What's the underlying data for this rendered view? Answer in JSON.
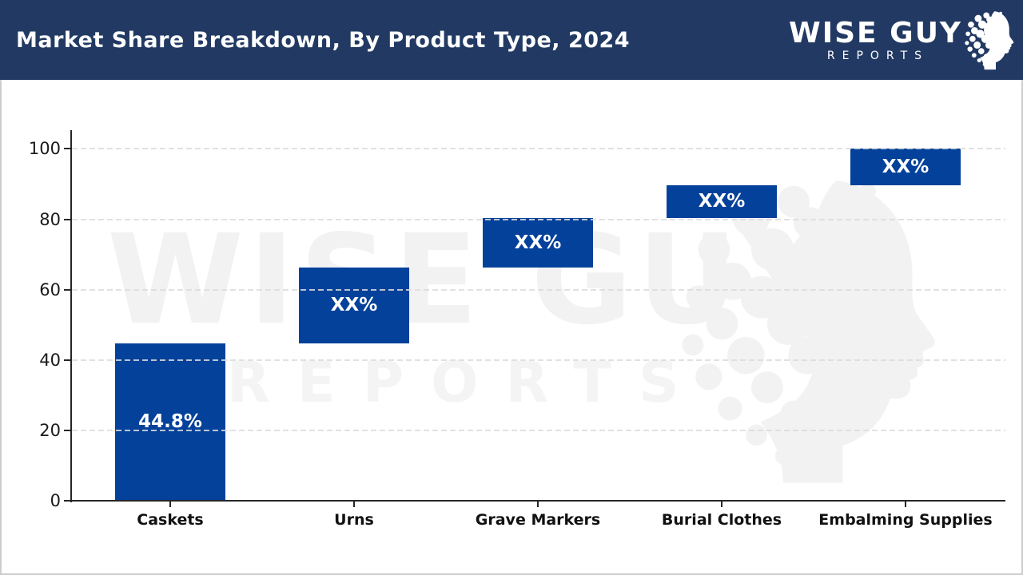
{
  "header": {
    "title": "Market Share Breakdown, By Product Type, 2024",
    "logo": {
      "name": "WISE GUY",
      "subtitle": "REPORTS"
    }
  },
  "watermark": {
    "name": "WISE GUY",
    "subtitle": "REPORTS"
  },
  "chart_data": {
    "type": "bar",
    "subtype": "waterfall",
    "title": "Market Share Breakdown, By Product Type, 2024",
    "categories": [
      "Caskets",
      "Urns",
      "Grave Markers",
      "Burial Clothes",
      "Embalming Supplies"
    ],
    "bars": [
      {
        "category": "Caskets",
        "start": 0,
        "end": 44.8,
        "label": "44.8%",
        "value_shown": 44.8
      },
      {
        "category": "Urns",
        "start": 44.8,
        "end": 66.2,
        "label": "XX%",
        "value_estimated": 21.4
      },
      {
        "category": "Grave Markers",
        "start": 66.2,
        "end": 80.4,
        "label": "XX%",
        "value_estimated": 14.2
      },
      {
        "category": "Burial Clothes",
        "start": 80.4,
        "end": 89.6,
        "label": "XX%",
        "value_estimated": 9.2
      },
      {
        "category": "Embalming Supplies",
        "start": 89.6,
        "end": 100,
        "label": "XX%",
        "value_estimated": 10.4
      }
    ],
    "xlabel": "",
    "ylabel": "",
    "yticks": [
      0,
      20,
      40,
      60,
      80,
      100
    ],
    "ylim": [
      0,
      105
    ],
    "grid": "horizontal-dashed",
    "legend": "none",
    "bar_color": "#04419a",
    "bar_label_color": "#ffffff"
  },
  "colors": {
    "header_bg": "#223a63",
    "bar": "#04419a",
    "axis": "#262626",
    "grid": "#dcdcdc",
    "watermark": "#f2f2f2",
    "border": "#cdcdcd"
  }
}
